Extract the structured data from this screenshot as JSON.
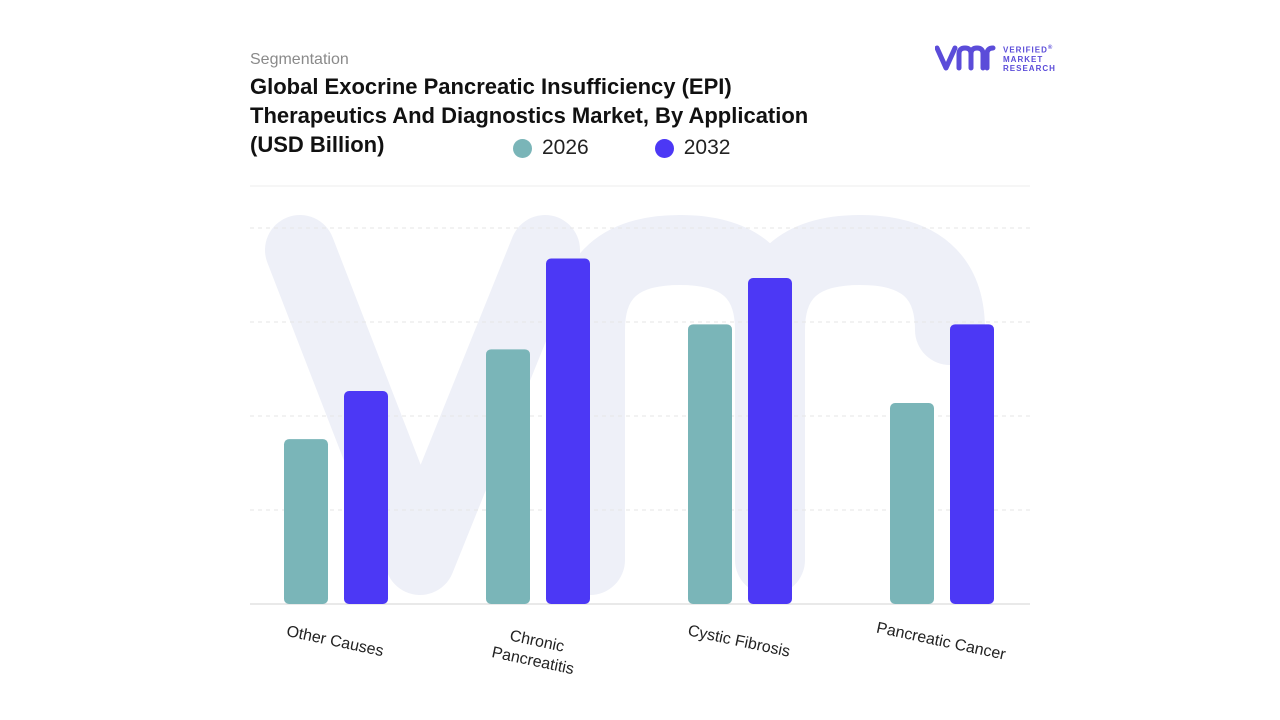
{
  "header": {
    "subtitle": "Segmentation",
    "title_lines": [
      "Global Exocrine Pancreatic Insufficiency (EPI)",
      "Therapeutics And Diagnostics Market, By Application",
      "(USD Billion)"
    ]
  },
  "logo": {
    "icon": "vmr-logo-icon",
    "lines": [
      "VERIFIED",
      "MARKET",
      "RESEARCH"
    ],
    "mark": "®"
  },
  "colors": {
    "series_2026": "#7ab5b8",
    "series_2032": "#4c38f5",
    "grid": "#e6e6e6",
    "watermark": "#eef0f8"
  },
  "chart_data": {
    "type": "bar",
    "title": "Global Exocrine Pancreatic Insufficiency (EPI) Therapeutics And Diagnostics Market, By Application (USD Billion)",
    "categories": [
      "Other Causes",
      "Chronic Pancreatitis",
      "Cystic Fibrosis",
      "Pancreatic Cancer"
    ],
    "category_lines": [
      [
        "Other Causes"
      ],
      [
        "Chronic",
        "Pancreatitis"
      ],
      [
        "Cystic Fibrosis"
      ],
      [
        "Pancreatic Cancer"
      ]
    ],
    "series": [
      {
        "name": "2026",
        "values": [
          1.78,
          2.75,
          3.02,
          2.17
        ]
      },
      {
        "name": "2032",
        "values": [
          2.3,
          3.73,
          3.52,
          3.02
        ]
      }
    ],
    "ylim": [
      0,
      4.06
    ],
    "y_ticks_count": 4,
    "grid": true,
    "legend_position": "top"
  }
}
